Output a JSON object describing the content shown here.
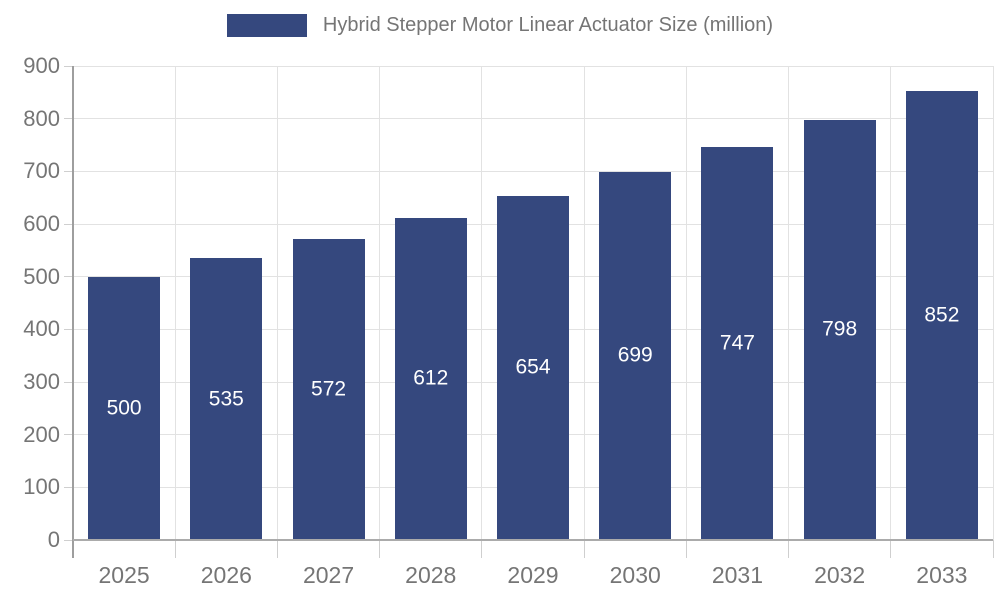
{
  "chart_data": {
    "type": "bar",
    "title": "Hybrid Stepper Motor Linear Actuator Size (million)",
    "categories": [
      "2025",
      "2026",
      "2027",
      "2028",
      "2029",
      "2030",
      "2031",
      "2032",
      "2033"
    ],
    "values": [
      500,
      535,
      572,
      612,
      654,
      699,
      747,
      798,
      852
    ],
    "xlabel": "",
    "ylabel": "",
    "ylim": [
      0,
      900
    ],
    "ytick_step": 100,
    "ytick_labels": [
      "0",
      "100",
      "200",
      "300",
      "400",
      "500",
      "600",
      "700",
      "800",
      "900"
    ],
    "grid": "on",
    "legend_position": "top",
    "value_labels": "inside-center"
  },
  "colors": {
    "bar_fill": "#35487e",
    "grid_line": "#e2e2e2",
    "axis_line": "#9e9e9e",
    "tick_mark": "#cfcfcf",
    "axis_text": "#757575",
    "bar_label_text": "#ffffff",
    "background": "#ffffff"
  }
}
